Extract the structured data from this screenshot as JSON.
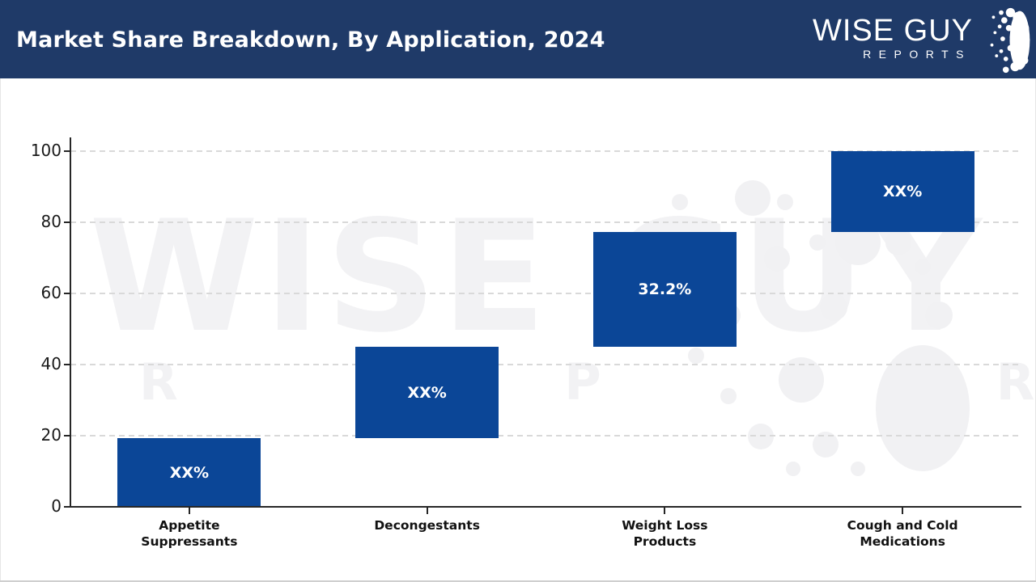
{
  "header": {
    "title": "Market Share Breakdown, By Application, 2024",
    "bg_color": "#1f3a68",
    "logo": {
      "line1": "WISE GUY",
      "line2": "REPORTS"
    }
  },
  "watermark": {
    "line1": "WISE GUY",
    "line2": "R E P O R T S"
  },
  "chart_data": {
    "type": "bar",
    "subtype": "waterfall-floating-segments",
    "title": "Market Share Breakdown, By Application, 2024",
    "categories": [
      "Appetite Suppressants",
      "Decongestants",
      "Weight Loss Products",
      "Cough and Cold Medications"
    ],
    "category_lines": [
      [
        "Appetite",
        "Suppressants"
      ],
      [
        "Decongestants"
      ],
      [
        "Weight Loss",
        "Products"
      ],
      [
        "Cough and Cold",
        "Medications"
      ]
    ],
    "segments": [
      {
        "start": 0,
        "end": 19.3,
        "label": "XX%"
      },
      {
        "start": 19.3,
        "end": 45,
        "label": "XX%"
      },
      {
        "start": 45,
        "end": 77.2,
        "label": "32.2%"
      },
      {
        "start": 77.2,
        "end": 100,
        "label": "XX%"
      }
    ],
    "values_height": [
      19.3,
      25.7,
      32.2,
      22.8
    ],
    "xlabel": "",
    "ylabel": "",
    "yticks": [
      0,
      20,
      40,
      60,
      80,
      100
    ],
    "ylim": [
      0,
      105
    ],
    "grid": "horizontal-dashed",
    "legend": "none",
    "bar_color": "#0b4697",
    "bar_label_color": "#ffffff",
    "axis_color": "#262626",
    "gridline_color": "#d9d9d9"
  }
}
